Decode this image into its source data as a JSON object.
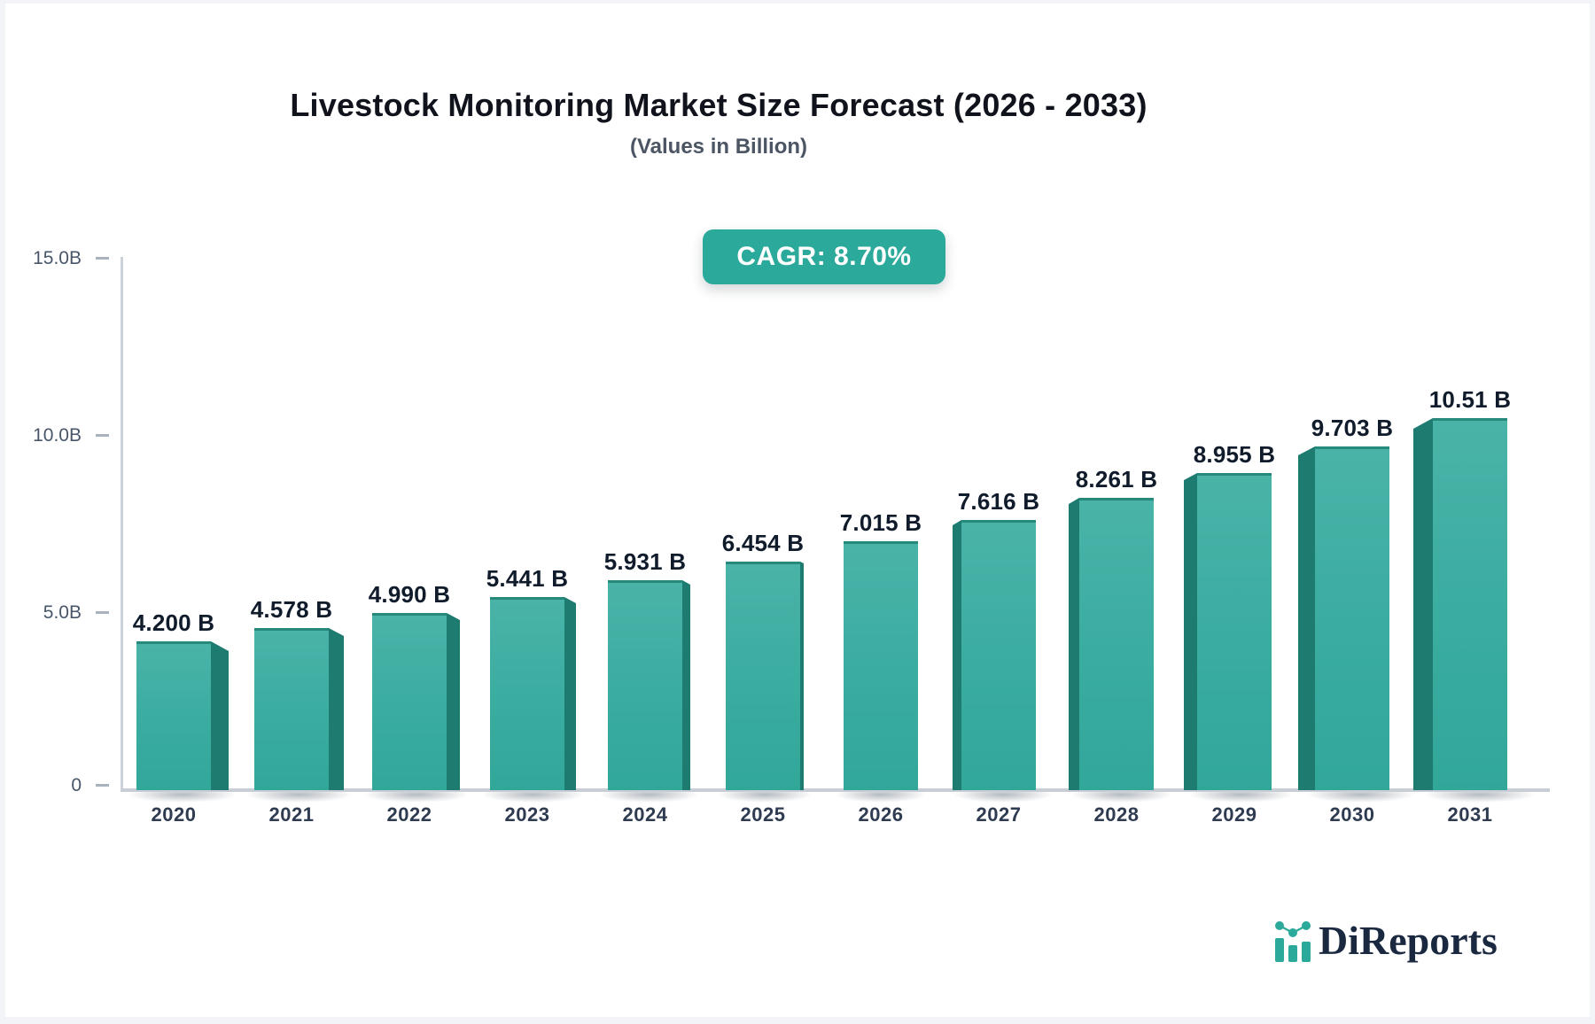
{
  "header": {
    "title": "Livestock Monitoring Market Size Forecast (2026 - 2033)",
    "subtitle": "(Values in Billion)"
  },
  "badge": {
    "label": "CAGR: 8.70%"
  },
  "brand": {
    "name": "DiReports"
  },
  "colors": {
    "accent_teal": "#2BA99B",
    "bar_face_top": "#4AB3A8",
    "bar_face_bottom": "#31A79A",
    "bar_top_edge": "#27897C",
    "bar_side_dark": "#1E7B70",
    "axis_gray": "#C9CED6",
    "tick_gray": "#AAB2BD",
    "y_label_color": "#49566A",
    "x_label_color": "#2E3B50",
    "value_label_color": "#101B2B",
    "title_color": "#10131C",
    "subtitle_color": "#4B5563",
    "brand_navy": "#1B2940",
    "page_background": "#F3F4F7",
    "card_background": "#FFFFFF"
  },
  "chart_data": {
    "type": "bar",
    "title": "Livestock Monitoring Market Size Forecast (2026 - 2033)",
    "subtitle": "(Values in Billion)",
    "cagr": "CAGR: 8.70%",
    "categories": [
      "2020",
      "2021",
      "2022",
      "2023",
      "2024",
      "2025",
      "2026",
      "2027",
      "2028",
      "2029",
      "2030",
      "2031"
    ],
    "values": [
      4.2,
      4.578,
      4.99,
      5.441,
      5.931,
      6.454,
      7.015,
      7.616,
      8.261,
      8.955,
      9.703,
      10.51
    ],
    "value_labels": [
      "4.200 B",
      "4.578 B",
      "4.990 B",
      "5.441 B",
      "5.931 B",
      "6.454 B",
      "7.015 B",
      "7.616 B",
      "8.261 B",
      "8.955 B",
      "9.703 B",
      "10.51 B"
    ],
    "xlabel": "",
    "ylabel": "",
    "ylim": [
      0,
      15
    ],
    "y_ticks": [
      {
        "label": "15.0B",
        "value": 15.0
      },
      {
        "label": "10.0B",
        "value": 10.0
      },
      {
        "label": "5.0B",
        "value": 5.0
      },
      {
        "label": "0",
        "value": 0
      }
    ],
    "grid": false,
    "legend": false,
    "bar_style": "3d-extruded"
  }
}
